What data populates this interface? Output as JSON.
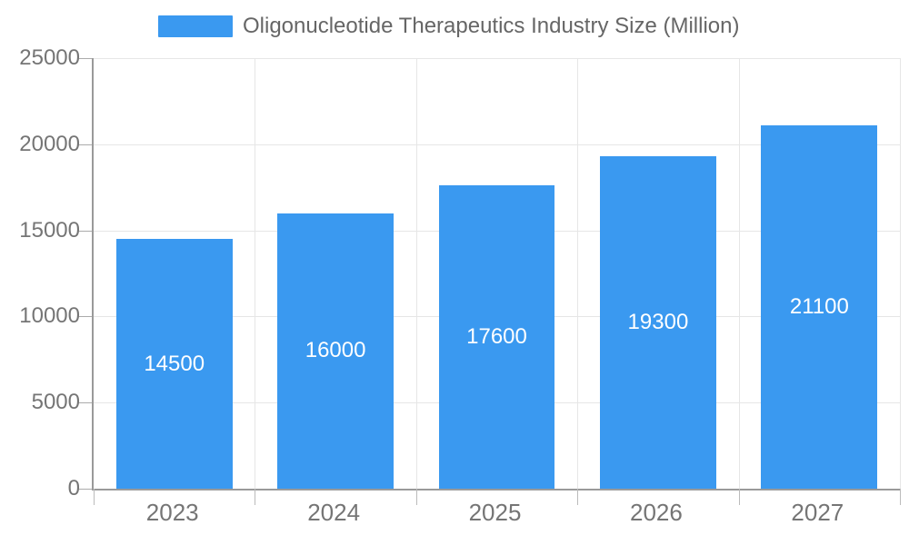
{
  "legend": {
    "label": "Oligonucleotide Therapeutics Industry Size (Million)"
  },
  "chart_data": {
    "type": "bar",
    "title": "Oligonucleotide Therapeutics Industry Size (Million)",
    "categories": [
      "2023",
      "2024",
      "2025",
      "2026",
      "2027"
    ],
    "values": [
      14500,
      16000,
      17600,
      19300,
      21100
    ],
    "xlabel": "",
    "ylabel": "",
    "ylim": [
      0,
      25000
    ],
    "yticks": [
      0,
      5000,
      10000,
      15000,
      20000,
      25000
    ],
    "ytick_labels_top_down": [
      "25000",
      "20000",
      "15000",
      "10000",
      "5000",
      "0"
    ],
    "grid": true,
    "legend_position": "top",
    "bar_color": "#3A99F0",
    "data_label_color": "#ffffff",
    "axis_text_color": "#757575",
    "grid_color": "#e6e6e6",
    "axis_line_color": "#9a9a9a"
  }
}
